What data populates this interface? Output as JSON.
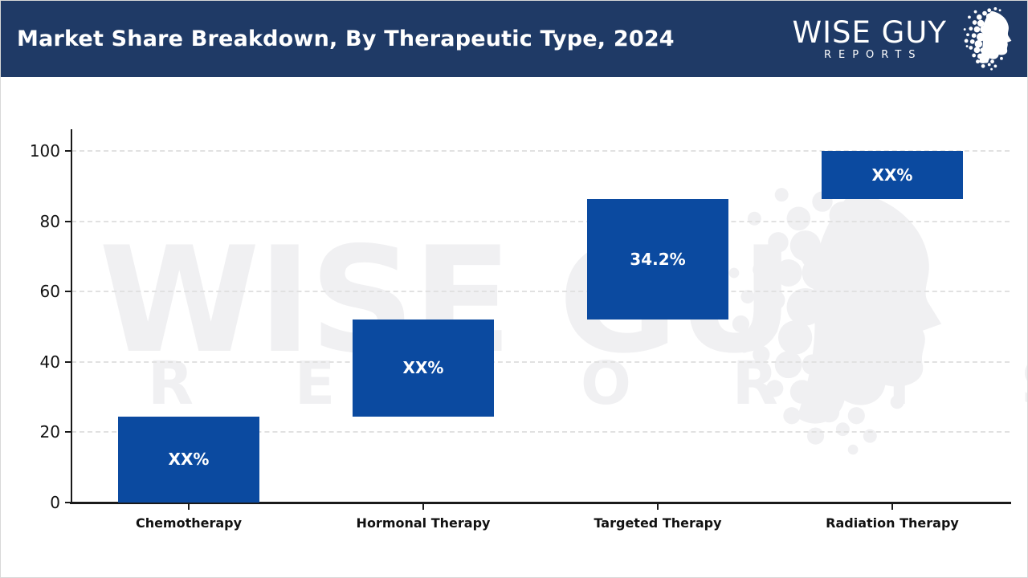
{
  "header": {
    "title": "Market Share Breakdown, By Therapeutic Type, 2024",
    "bg_color": "#1f3a66",
    "logo": {
      "line1": "WISE GUY",
      "line2": "REPORTS",
      "icon": "wiseguy-head-icon"
    }
  },
  "watermark": {
    "line1": "WISE GUY",
    "line2": "R E P O R T S",
    "icon": "wiseguy-head-watermark-icon",
    "color": "#f0f0f2"
  },
  "chart_data": {
    "type": "bar",
    "subtype": "waterfall",
    "title": "Market Share Breakdown, By Therapeutic Type, 2024",
    "categories": [
      "Chemotherapy",
      "Hormonal Therapy",
      "Targeted Therapy",
      "Radiation Therapy"
    ],
    "segments": [
      {
        "category": "Chemotherapy",
        "start": 0,
        "end": 24.5,
        "label": "XX%"
      },
      {
        "category": "Hormonal Therapy",
        "start": 24.5,
        "end": 52.1,
        "label": "XX%"
      },
      {
        "category": "Targeted Therapy",
        "start": 52.1,
        "end": 86.3,
        "label": "34.2%"
      },
      {
        "category": "Radiation Therapy",
        "start": 86.3,
        "end": 100,
        "label": "XX%"
      }
    ],
    "yticks": [
      0,
      20,
      40,
      60,
      80,
      100
    ],
    "ylim": [
      0,
      106
    ],
    "xlabel": "",
    "ylabel": "",
    "grid": "horizontal-dashed",
    "legend": "none",
    "bar_color": "#0b4aa0",
    "bar_label_color": "#ffffff",
    "axis_color": "#1a1a1a",
    "gridline_color": "#e1e1e1"
  }
}
